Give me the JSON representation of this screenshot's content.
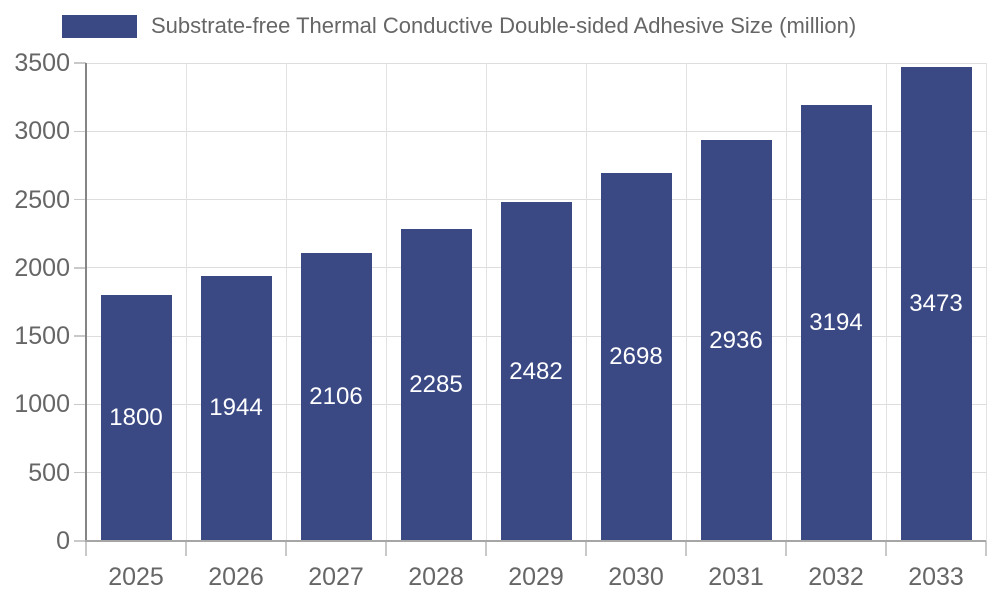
{
  "legend": {
    "label": "Substrate-free Thermal Conductive Double-sided Adhesive Size (million)"
  },
  "chart_data": {
    "type": "bar",
    "title": "",
    "xlabel": "",
    "ylabel": "",
    "categories": [
      "2025",
      "2026",
      "2027",
      "2028",
      "2029",
      "2030",
      "2031",
      "2032",
      "2033"
    ],
    "values": [
      1800,
      1944,
      2106,
      2285,
      2482,
      2698,
      2936,
      3194,
      3473
    ],
    "series": [
      {
        "name": "Substrate-free Thermal Conductive Double-sided Adhesive Size (million)",
        "values": [
          1800,
          1944,
          2106,
          2285,
          2482,
          2698,
          2936,
          3194,
          3473
        ]
      }
    ],
    "ylim": [
      0,
      3500
    ],
    "yticks": [
      0,
      500,
      1000,
      1500,
      2000,
      2500,
      3000,
      3500
    ],
    "grid": true,
    "value_labels_shown": true,
    "legend_position": "top-left",
    "colors": {
      "bar": "#3A4984",
      "value_label": "#FFFFFF",
      "axis_text": "#666666",
      "gridline": "#DDDDDD",
      "vertical_gridline": "#E2E2E2",
      "tick": "#C9C9C9",
      "y_axis_line": "#858585",
      "x_axis_line": "#A6A6A6",
      "background": "#FFFFFF"
    }
  }
}
